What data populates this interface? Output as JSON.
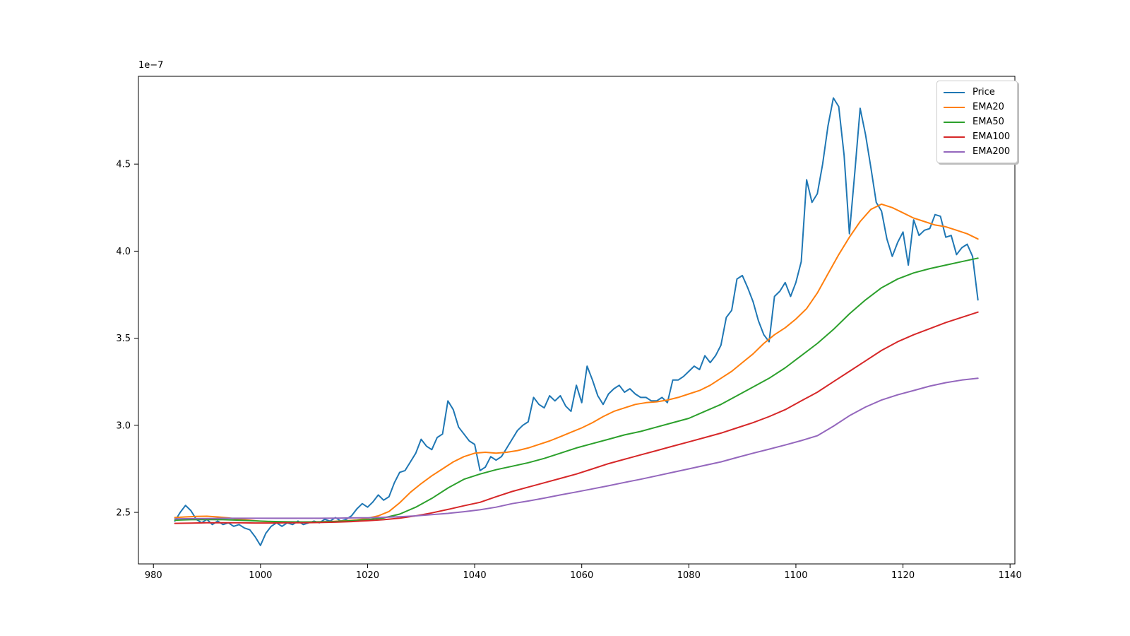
{
  "figure": {
    "offset_text": "1e−7",
    "background_color": "#ffffff",
    "spine_color": "#000000"
  },
  "legend": {
    "position": "upper right",
    "entries": [
      {
        "label": "Price",
        "color": "#1f77b4"
      },
      {
        "label": "EMA20",
        "color": "#ff7f0e"
      },
      {
        "label": "EMA50",
        "color": "#2ca02c"
      },
      {
        "label": "EMA100",
        "color": "#d62728"
      },
      {
        "label": "EMA200",
        "color": "#9467bd"
      }
    ]
  },
  "chart_data": {
    "type": "line",
    "title": "",
    "xlabel": "",
    "ylabel": "",
    "grid": false,
    "y_offset_label": "1e−7",
    "y_unit_multiplier": 1e-07,
    "x_axis_range": [
      977.2,
      1140.9
    ],
    "y_axis_range": [
      2.204,
      5.004
    ],
    "x_ticks": [
      980,
      1000,
      1020,
      1040,
      1060,
      1080,
      1100,
      1120,
      1140
    ],
    "x_tick_labels": [
      "980",
      "1000",
      "1020",
      "1040",
      "1060",
      "1080",
      "1100",
      "1120",
      "1140"
    ],
    "y_ticks": [
      2.5,
      3.0,
      3.5,
      4.0,
      4.5
    ],
    "y_tick_labels": [
      "2.5",
      "3.0",
      "3.5",
      "4.0",
      "4.5"
    ],
    "series": [
      {
        "name": "Price",
        "color": "#1f77b4",
        "x_start": 984,
        "x_step": 1,
        "values": [
          2.45,
          2.5,
          2.54,
          2.51,
          2.46,
          2.44,
          2.46,
          2.43,
          2.45,
          2.43,
          2.44,
          2.42,
          2.43,
          2.41,
          2.4,
          2.36,
          2.31,
          2.38,
          2.42,
          2.44,
          2.42,
          2.44,
          2.43,
          2.45,
          2.43,
          2.44,
          2.45,
          2.44,
          2.46,
          2.45,
          2.47,
          2.45,
          2.46,
          2.48,
          2.52,
          2.55,
          2.53,
          2.56,
          2.6,
          2.57,
          2.59,
          2.67,
          2.73,
          2.74,
          2.79,
          2.84,
          2.92,
          2.88,
          2.86,
          2.93,
          2.95,
          3.14,
          3.09,
          2.99,
          2.95,
          2.91,
          2.89,
          2.74,
          2.76,
          2.82,
          2.8,
          2.82,
          2.87,
          2.92,
          2.97,
          3.0,
          3.02,
          3.16,
          3.12,
          3.1,
          3.17,
          3.14,
          3.17,
          3.11,
          3.08,
          3.23,
          3.13,
          3.34,
          3.26,
          3.17,
          3.12,
          3.18,
          3.21,
          3.23,
          3.19,
          3.21,
          3.18,
          3.16,
          3.16,
          3.14,
          3.14,
          3.16,
          3.13,
          3.26,
          3.26,
          3.28,
          3.31,
          3.34,
          3.32,
          3.4,
          3.36,
          3.4,
          3.46,
          3.62,
          3.66,
          3.84,
          3.86,
          3.79,
          3.71,
          3.6,
          3.52,
          3.48,
          3.74,
          3.77,
          3.82,
          3.74,
          3.82,
          3.94,
          4.41,
          4.28,
          4.33,
          4.5,
          4.72,
          4.88,
          4.83,
          4.55,
          4.1,
          4.45,
          4.82,
          4.67,
          4.48,
          4.28,
          4.23,
          4.07,
          3.97,
          4.05,
          4.11,
          3.92,
          4.18,
          4.09,
          4.12,
          4.13,
          4.21,
          4.2,
          4.08,
          4.09,
          3.98,
          4.02,
          4.04,
          3.97,
          3.72
        ]
      },
      {
        "name": "EMA20",
        "color": "#ff7f0e",
        "x_start": 984,
        "x_step": 2,
        "values": [
          2.47,
          2.474,
          2.477,
          2.478,
          2.474,
          2.468,
          2.461,
          2.455,
          2.449,
          2.446,
          2.444,
          2.443,
          2.443,
          2.444,
          2.446,
          2.449,
          2.452,
          2.457,
          2.466,
          2.48,
          2.505,
          2.555,
          2.615,
          2.665,
          2.71,
          2.75,
          2.79,
          2.82,
          2.84,
          2.845,
          2.84,
          2.845,
          2.855,
          2.87,
          2.89,
          2.91,
          2.935,
          2.96,
          2.985,
          3.015,
          3.05,
          3.08,
          3.1,
          3.12,
          3.13,
          3.135,
          3.145,
          3.16,
          3.18,
          3.2,
          3.23,
          3.27,
          3.31,
          3.36,
          3.41,
          3.47,
          3.52,
          3.56,
          3.61,
          3.67,
          3.76,
          3.87,
          3.98,
          4.08,
          4.17,
          4.24,
          4.27,
          4.25,
          4.22,
          4.19,
          4.17,
          4.15,
          4.14,
          4.12,
          4.1,
          4.07
        ]
      },
      {
        "name": "EMA50",
        "color": "#2ca02c",
        "x_start": 984,
        "x_step": 3,
        "values": [
          2.455,
          2.458,
          2.459,
          2.458,
          2.455,
          2.451,
          2.448,
          2.446,
          2.445,
          2.446,
          2.448,
          2.452,
          2.458,
          2.468,
          2.49,
          2.53,
          2.58,
          2.64,
          2.69,
          2.72,
          2.745,
          2.765,
          2.785,
          2.81,
          2.84,
          2.87,
          2.895,
          2.92,
          2.945,
          2.965,
          2.99,
          3.015,
          3.04,
          3.08,
          3.12,
          3.17,
          3.22,
          3.27,
          3.33,
          3.4,
          3.47,
          3.55,
          3.64,
          3.72,
          3.79,
          3.84,
          3.875,
          3.9,
          3.92,
          3.94,
          3.96
        ]
      },
      {
        "name": "EMA100",
        "color": "#d62728",
        "x_start": 984,
        "x_step": 3,
        "values": [
          2.437,
          2.438,
          2.44,
          2.44,
          2.44,
          2.439,
          2.439,
          2.44,
          2.44,
          2.442,
          2.444,
          2.447,
          2.452,
          2.458,
          2.467,
          2.48,
          2.497,
          2.517,
          2.538,
          2.558,
          2.59,
          2.62,
          2.645,
          2.67,
          2.695,
          2.72,
          2.75,
          2.78,
          2.805,
          2.83,
          2.855,
          2.88,
          2.905,
          2.93,
          2.955,
          2.985,
          3.015,
          3.05,
          3.09,
          3.14,
          3.19,
          3.25,
          3.31,
          3.37,
          3.43,
          3.48,
          3.52,
          3.555,
          3.59,
          3.62,
          3.65
        ]
      },
      {
        "name": "EMA200",
        "color": "#9467bd",
        "x_start": 984,
        "x_step": 3,
        "values": [
          2.463,
          2.464,
          2.465,
          2.466,
          2.466,
          2.466,
          2.466,
          2.466,
          2.466,
          2.466,
          2.467,
          2.468,
          2.469,
          2.472,
          2.475,
          2.48,
          2.487,
          2.494,
          2.504,
          2.515,
          2.53,
          2.55,
          2.565,
          2.582,
          2.6,
          2.617,
          2.635,
          2.653,
          2.672,
          2.69,
          2.71,
          2.73,
          2.75,
          2.77,
          2.79,
          2.815,
          2.84,
          2.863,
          2.887,
          2.912,
          2.94,
          2.995,
          3.055,
          3.105,
          3.145,
          3.175,
          3.2,
          3.225,
          3.245,
          3.26,
          3.27
        ]
      }
    ]
  }
}
